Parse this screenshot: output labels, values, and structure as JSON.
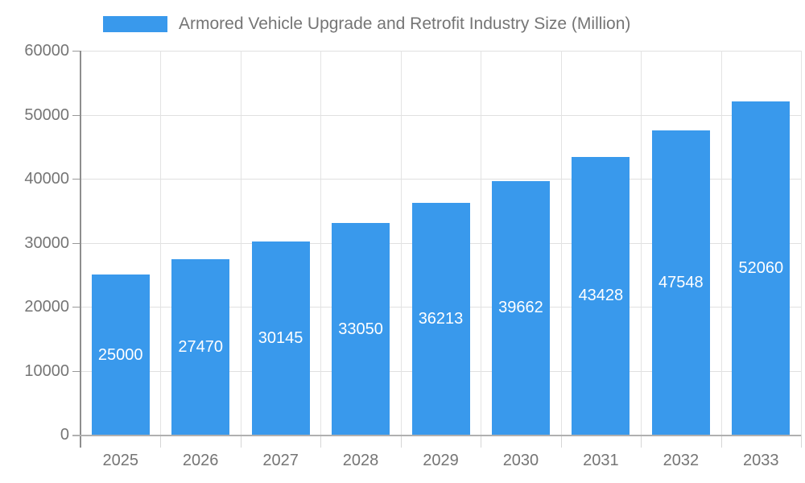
{
  "legend": {
    "label": "Armored Vehicle Upgrade and Retrofit Industry Size (Million)"
  },
  "colors": {
    "bar": "#3999EC",
    "bar_label": "#FFFFFF",
    "grid_h": "#E0E0E0",
    "grid_v": "#E3E3E3",
    "axis_y": "#8E8E8E",
    "axis_x": "#B0B0B0",
    "tick_y": "#999999",
    "tick_x": "#D6D6D6",
    "text": "#757575",
    "background": "#FFFFFF"
  },
  "chart_data": {
    "type": "bar",
    "title": "Armored Vehicle Upgrade and Retrofit Industry Size (Million)",
    "categories": [
      "2025",
      "2026",
      "2027",
      "2028",
      "2029",
      "2030",
      "2031",
      "2032",
      "2033"
    ],
    "values": [
      25000,
      27470,
      30145,
      33050,
      36213,
      39662,
      43428,
      47548,
      52060
    ],
    "xlabel": "",
    "ylabel": "",
    "ylim": [
      0,
      60000
    ],
    "yticks": [
      0,
      10000,
      20000,
      30000,
      40000,
      50000,
      60000
    ],
    "grid": true,
    "legend_position": "top",
    "bar_labels": "inside-center"
  }
}
